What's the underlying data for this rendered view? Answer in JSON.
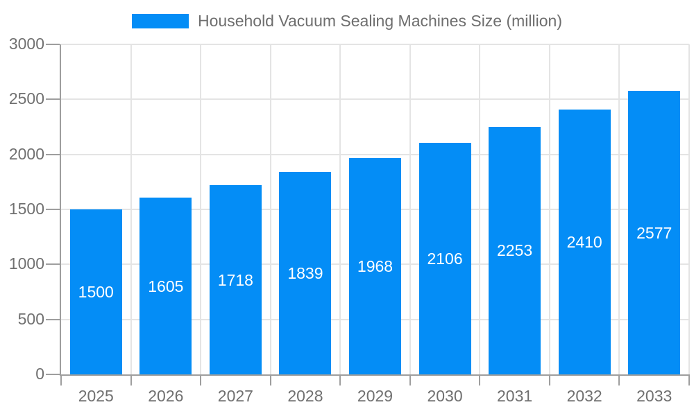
{
  "legend": {
    "position": "top",
    "label": "Household Vacuum Sealing Machines Size (million)"
  },
  "chart_data": {
    "type": "bar",
    "title": "Household Vacuum Sealing Machines Size (million)",
    "categories": [
      "2025",
      "2026",
      "2027",
      "2028",
      "2029",
      "2030",
      "2031",
      "2032",
      "2033"
    ],
    "values": [
      1500,
      1605,
      1718,
      1839,
      1968,
      2106,
      2253,
      2410,
      2577
    ],
    "xlabel": "",
    "ylabel": "",
    "ylim": [
      0,
      3000
    ],
    "yticks": [
      0,
      500,
      1000,
      1500,
      2000,
      2500,
      3000
    ],
    "grid": true,
    "legend_position": "top",
    "value_labels": "inside-center",
    "colors": {
      "bar": "#048DF6",
      "grid": "#E4E4E4",
      "axis": "#9E9E9E",
      "tick": "#9E9E9E",
      "label": "#707070",
      "value_label": "#FFFFFF",
      "background": "#FFFFFF"
    }
  }
}
